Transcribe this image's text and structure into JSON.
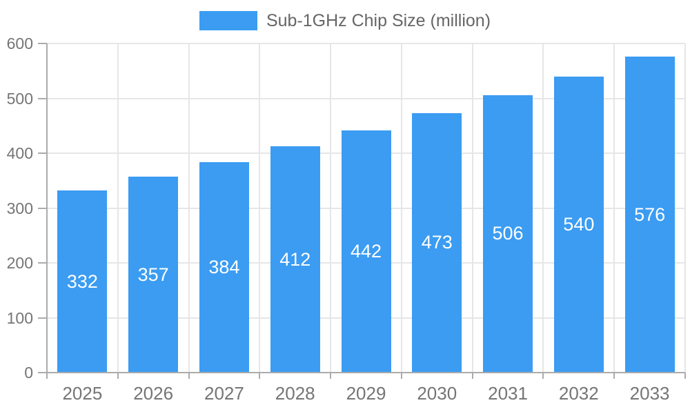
{
  "legend": {
    "label": "Sub-1GHz Chip Size (million)"
  },
  "chart_data": {
    "type": "bar",
    "title": "Sub-1GHz Chip Size (million)",
    "categories": [
      "2025",
      "2026",
      "2027",
      "2028",
      "2029",
      "2030",
      "2031",
      "2032",
      "2033"
    ],
    "values": [
      332,
      357,
      384,
      412,
      442,
      473,
      506,
      540,
      576
    ],
    "xlabel": "",
    "ylabel": "",
    "ylim": [
      0,
      600
    ],
    "yticks": [
      0,
      100,
      200,
      300,
      400,
      500,
      600
    ],
    "grid": true,
    "legend_position": "top-center",
    "bar_label_position": "inside-center",
    "colors": {
      "bar": "#3B9CF2",
      "bar_label": "#FFFFFF",
      "grid": "#E6E6E6",
      "axis": "#ABABAB",
      "tick_label": "#757575",
      "legend_text": "#666666",
      "background": "#FFFFFF"
    }
  }
}
